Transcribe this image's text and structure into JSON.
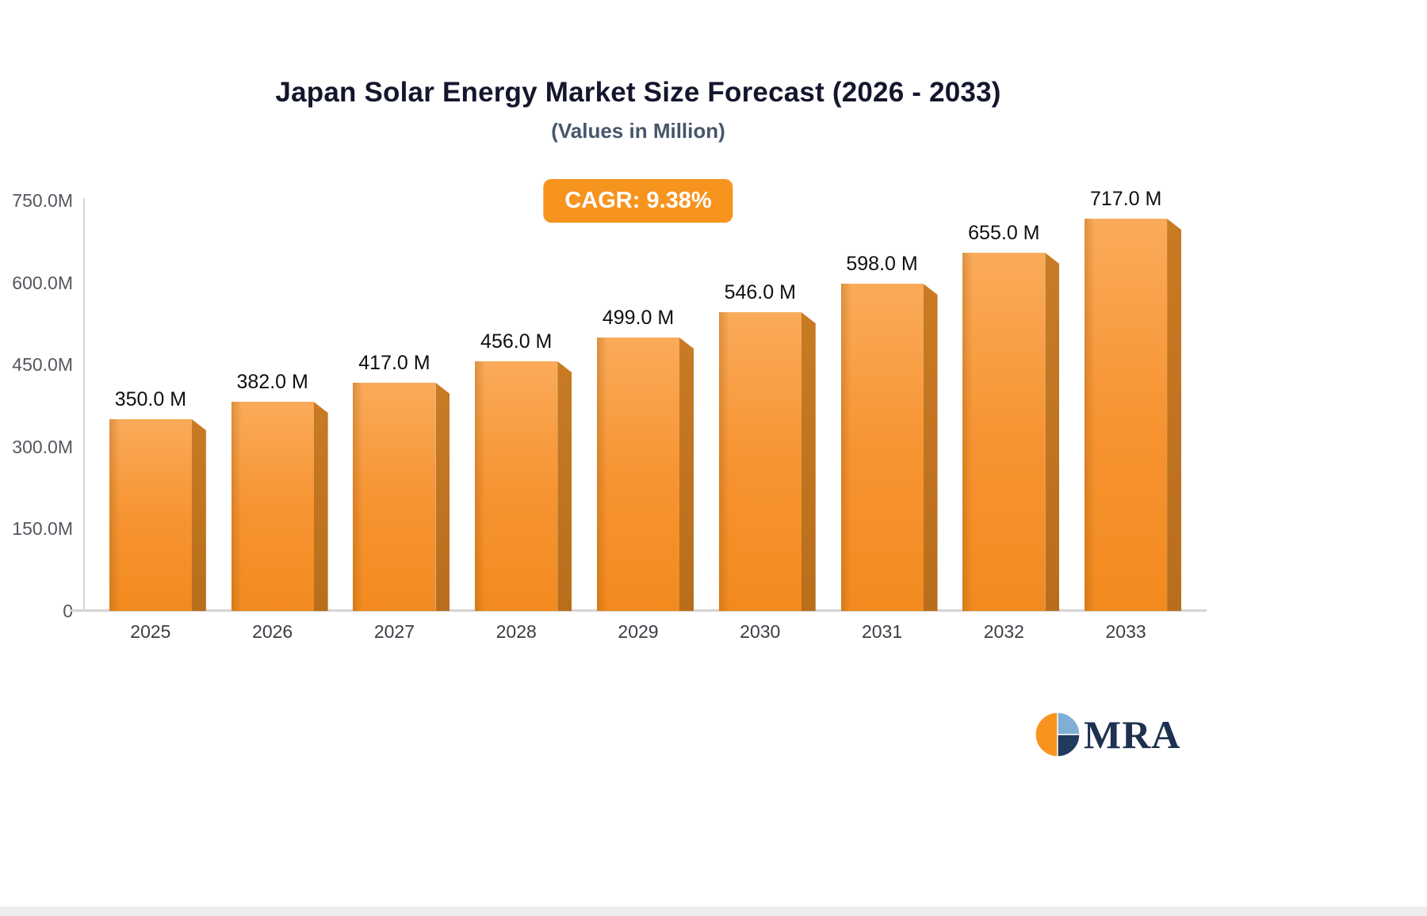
{
  "chart_data": {
    "type": "bar",
    "title": "Japan Solar Energy Market Size Forecast (2026 - 2033)",
    "subtitle": "(Values in Million)",
    "cagr_label": "CAGR: 9.38%",
    "categories": [
      "2025",
      "2026",
      "2027",
      "2028",
      "2029",
      "2030",
      "2031",
      "2032",
      "2033"
    ],
    "values": [
      350,
      382,
      417,
      456,
      499,
      546,
      598,
      655,
      717
    ],
    "value_labels": [
      "350.0 M",
      "382.0 M",
      "417.0 M",
      "456.0 M",
      "499.0 M",
      "546.0 M",
      "598.0 M",
      "655.0 M",
      "717.0 M"
    ],
    "y_ticks": [
      {
        "label": "750.0M",
        "value": 750
      },
      {
        "label": "600.0M",
        "value": 600
      },
      {
        "label": "450.0M",
        "value": 450
      },
      {
        "label": "300.0M",
        "value": 300
      },
      {
        "label": "150.0M",
        "value": 150
      },
      {
        "label": "0",
        "value": 0
      }
    ],
    "ylim": [
      0,
      750
    ],
    "xlabel": "",
    "ylabel": "",
    "grid": false,
    "legend": false,
    "bar_color_top": "#FAAB59",
    "bar_color_bottom": "#F28A1E",
    "bar_side_color": "#C07523",
    "badge_color": "#F7941E",
    "value_label_color": "#0F0F0F",
    "axis_label_color": "#54585E"
  },
  "logo": {
    "text": "MRA",
    "icon_colors": {
      "orange": "#F7941E",
      "light_blue": "#7FAFD4",
      "navy": "#1E3A5F"
    }
  }
}
